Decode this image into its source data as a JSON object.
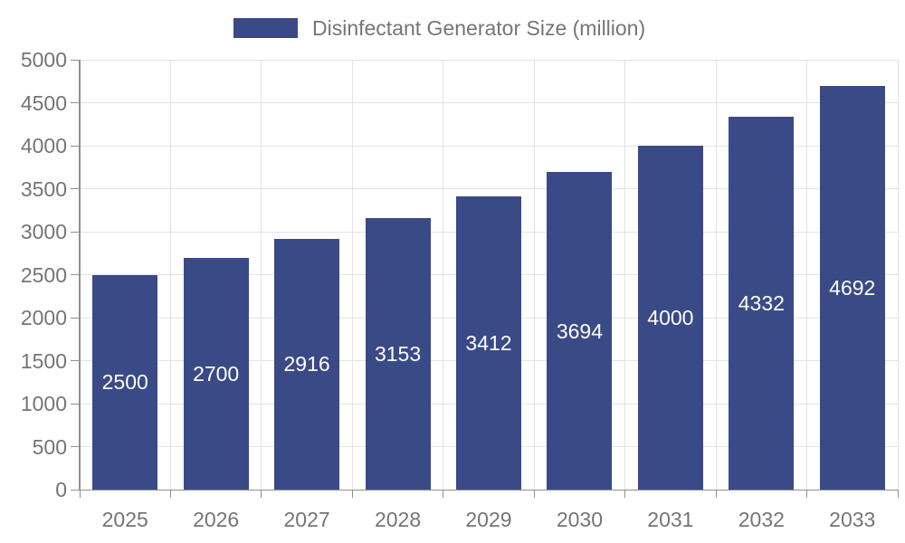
{
  "chart_data": {
    "type": "bar",
    "title": "",
    "legend": "Disinfectant Generator Size (million)",
    "legend_position": "top-center",
    "categories": [
      "2025",
      "2026",
      "2027",
      "2028",
      "2029",
      "2030",
      "2031",
      "2032",
      "2033"
    ],
    "values": [
      2500,
      2700,
      2916,
      3153,
      3412,
      3694,
      4000,
      4332,
      4692
    ],
    "xlabel": "",
    "ylabel": "",
    "ylim": [
      0,
      5000
    ],
    "ytick_step": 500,
    "yticks": [
      0,
      500,
      1000,
      1500,
      2000,
      2500,
      3000,
      3500,
      4000,
      4500,
      5000
    ],
    "grid": true,
    "colors": {
      "bar": "#394A87",
      "bar_value_text": "#ffffff",
      "axis_text": "#757575",
      "legend_text": "#757575",
      "axis_line": "#909090",
      "gridline": "#E2E3E8",
      "background": "#ffffff"
    }
  }
}
